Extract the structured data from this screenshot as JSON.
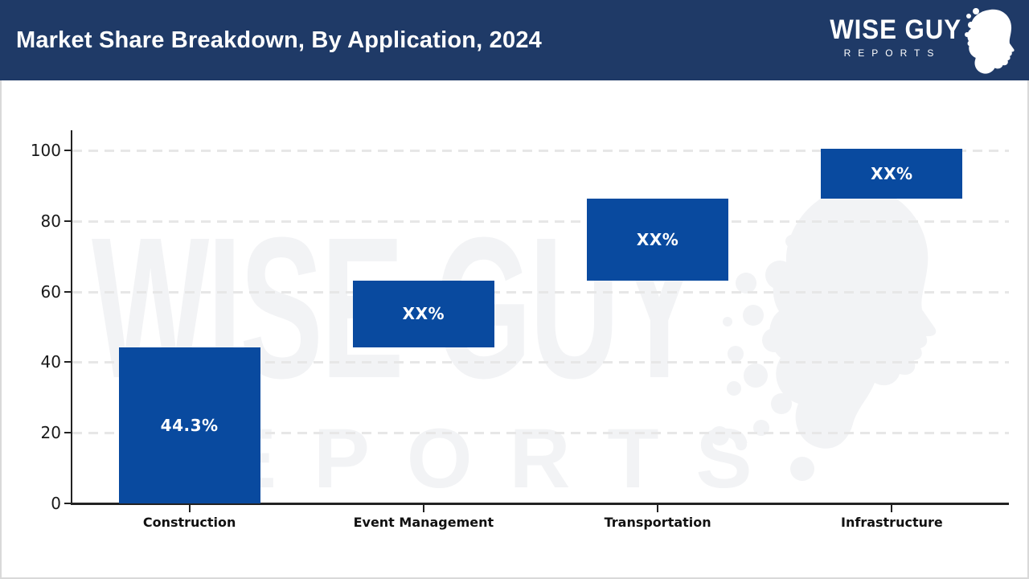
{
  "header": {
    "title": "Market Share Breakdown, By Application, 2024",
    "background_color": "#1f3a67",
    "logo": {
      "line1": "WISE GUY",
      "line2": "REPORTS"
    }
  },
  "watermark": {
    "line1": "WISE GUY",
    "line2": "REPORTS"
  },
  "chart_data": {
    "type": "bar",
    "subtype": "waterfall-floating-bars",
    "title": "Market Share Breakdown, By Application, 2024",
    "xlabel": "",
    "ylabel": "",
    "categories": [
      "Construction",
      "Event Management",
      "Transportation",
      "Infrastructure"
    ],
    "bars": [
      {
        "category": "Construction",
        "label": "44.3%",
        "start": 0,
        "end": 44.3
      },
      {
        "category": "Event Management",
        "label": "XX%",
        "start": 44.3,
        "end": 63.2
      },
      {
        "category": "Transportation",
        "label": "XX%",
        "start": 63.2,
        "end": 86.4
      },
      {
        "category": "Infrastructure",
        "label": "XX%",
        "start": 86.4,
        "end": 100.5
      }
    ],
    "yticks": [
      0,
      20,
      40,
      60,
      80,
      100
    ],
    "ylim": [
      0,
      105
    ],
    "grid": "horizontal-dashed",
    "legend": "none",
    "bar_color": "#094a9f",
    "label_color": "#ffffff"
  }
}
